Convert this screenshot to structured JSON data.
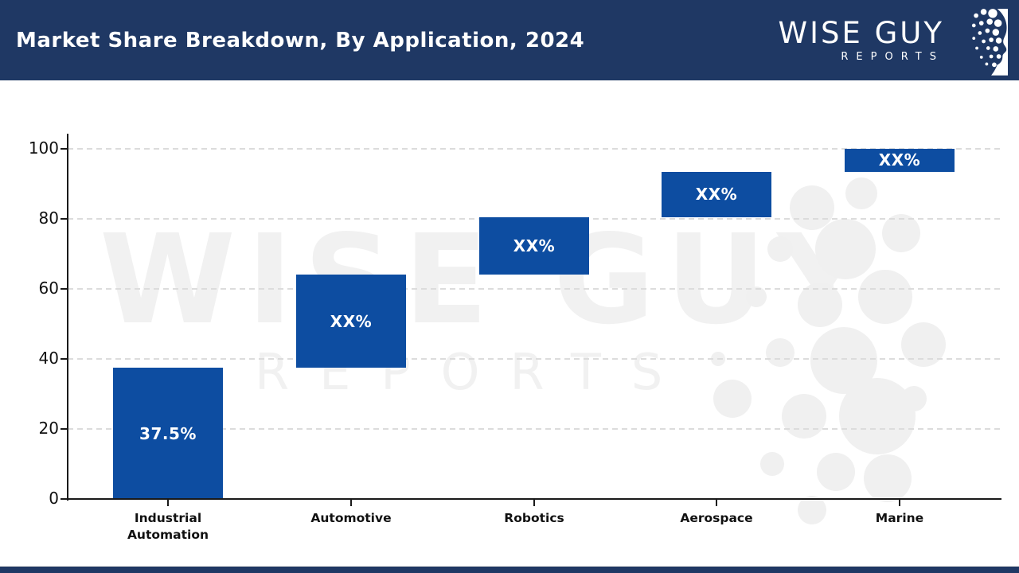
{
  "header": {
    "title": "Market Share Breakdown, By Application, 2024",
    "logo": {
      "line1": "WISE GUY",
      "line2": "REPORTS"
    }
  },
  "watermark": {
    "line1": "WISE GUY",
    "line2": "REPORTS"
  },
  "colors": {
    "header_bg": "#1f3864",
    "footer_bg": "#1f3864",
    "bar": "#0d4da1",
    "bar_label_text": "#ffffff",
    "grid": "#dcdcdc",
    "axis": "#1a1a1a",
    "watermark": "#f1f1f1"
  },
  "chart_data": {
    "type": "bar",
    "subtype": "waterfall",
    "title": "Market Share Breakdown, By Application, 2024",
    "xlabel": "",
    "ylabel": "",
    "ylim": [
      0,
      100
    ],
    "yticks": [
      0,
      20,
      40,
      60,
      80,
      100
    ],
    "grid": "horizontal-dashed",
    "legend": "none",
    "categories": [
      "Industrial Automation",
      "Automotive",
      "Robotics",
      "Aerospace",
      "Marine"
    ],
    "segments": [
      {
        "category": "Industrial Automation",
        "start": 0,
        "end": 37.5,
        "label": "37.5%"
      },
      {
        "category": "Automotive",
        "start": 37.5,
        "end": 64,
        "label": "XX%"
      },
      {
        "category": "Robotics",
        "start": 64,
        "end": 80.5,
        "label": "XX%"
      },
      {
        "category": "Aerospace",
        "start": 80.5,
        "end": 93.5,
        "label": "XX%"
      },
      {
        "category": "Marine",
        "start": 93.5,
        "end": 100,
        "label": "XX%"
      }
    ]
  }
}
